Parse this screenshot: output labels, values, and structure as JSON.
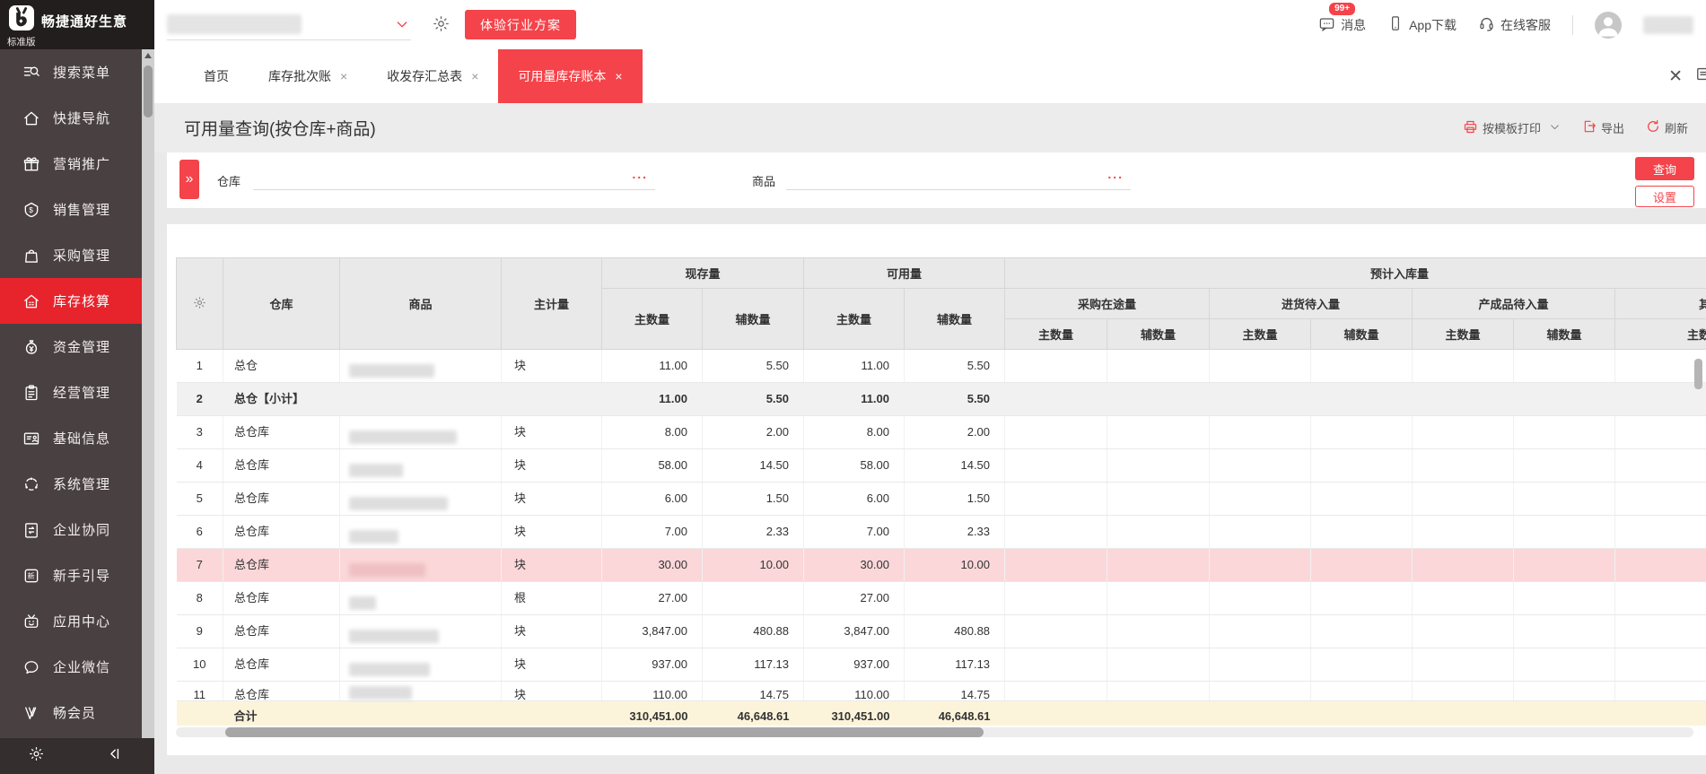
{
  "brand": {
    "name": "畅捷通好生意",
    "edition": "标准版"
  },
  "sidebar": {
    "items": [
      {
        "id": "search-menu",
        "label": "搜索菜单",
        "icon": "search-menu-icon",
        "active": false
      },
      {
        "id": "quick-nav",
        "label": "快捷导航",
        "icon": "home-icon",
        "active": false
      },
      {
        "id": "marketing",
        "label": "营销推广",
        "icon": "gift-icon",
        "active": false
      },
      {
        "id": "sales",
        "label": "销售管理",
        "icon": "sales-shield-icon",
        "active": false
      },
      {
        "id": "purchase",
        "label": "采购管理",
        "icon": "shopping-bag-icon",
        "active": false
      },
      {
        "id": "inventory",
        "label": "库存核算",
        "icon": "warehouse-icon",
        "active": true
      },
      {
        "id": "funds",
        "label": "资金管理",
        "icon": "money-bag-icon",
        "active": false
      },
      {
        "id": "operations",
        "label": "经营管理",
        "icon": "clipboard-icon",
        "active": false
      },
      {
        "id": "base-info",
        "label": "基础信息",
        "icon": "id-card-icon",
        "active": false
      },
      {
        "id": "system",
        "label": "系统管理",
        "icon": "system-icon",
        "active": false
      },
      {
        "id": "collaboration",
        "label": "企业协同",
        "icon": "collaboration-icon",
        "active": false
      },
      {
        "id": "newbie-guide",
        "label": "新手引导",
        "icon": "newbie-icon",
        "active": false
      },
      {
        "id": "app-center",
        "label": "应用中心",
        "icon": "app-center-icon",
        "active": false
      },
      {
        "id": "wecom",
        "label": "企业微信",
        "icon": "wecom-icon",
        "active": false
      },
      {
        "id": "member",
        "label": "畅会员",
        "icon": "member-icon",
        "active": false
      }
    ]
  },
  "topbar": {
    "trial_button": "体验行业方案",
    "messages_label": "消息",
    "messages_badge": "99+",
    "app_download_label": "App下载",
    "online_service_label": "在线客服"
  },
  "tabs": [
    {
      "label": "首页",
      "closable": false,
      "active": false
    },
    {
      "label": "库存批次账",
      "closable": true,
      "active": false
    },
    {
      "label": "收发存汇总表",
      "closable": true,
      "active": false
    },
    {
      "label": "可用量库存账本",
      "closable": true,
      "active": true
    }
  ],
  "page": {
    "title": "可用量查询(按仓库+商品)",
    "print_label": "按模板打印",
    "export_label": "导出",
    "refresh_label": "刷新"
  },
  "filters": {
    "warehouse_label": "仓库",
    "product_label": "商品",
    "ellipsis": "...",
    "query_button": "查询",
    "settings_button": "设置"
  },
  "table": {
    "columns": {
      "warehouse": "仓库",
      "product": "商品",
      "unit": "主计量"
    },
    "groups": {
      "stock": "现存量",
      "available": "可用量",
      "expected": "预计入库量"
    },
    "subgroups": {
      "purchase_transit": "采购在途量",
      "incoming": "进货待入量",
      "finished_goods": "产成品待入量",
      "other_truncated": "其"
    },
    "qty": {
      "main": "主数量",
      "aux": "辅数量"
    },
    "rows": [
      {
        "idx": "1",
        "warehouse": "总仓",
        "unit": "块",
        "values": [
          "11.00",
          "5.50",
          "11.00",
          "5.50"
        ],
        "type": "normal",
        "blur_width": 95
      },
      {
        "idx": "2",
        "warehouse": "总仓【小计】",
        "unit": "",
        "values": [
          "11.00",
          "5.50",
          "11.00",
          "5.50"
        ],
        "type": "subtotal",
        "blur_width": 0
      },
      {
        "idx": "3",
        "warehouse": "总仓库",
        "unit": "块",
        "values": [
          "8.00",
          "2.00",
          "8.00",
          "2.00"
        ],
        "type": "normal",
        "blur_width": 120
      },
      {
        "idx": "4",
        "warehouse": "总仓库",
        "unit": "块",
        "values": [
          "58.00",
          "14.50",
          "58.00",
          "14.50"
        ],
        "type": "normal",
        "blur_width": 60
      },
      {
        "idx": "5",
        "warehouse": "总仓库",
        "unit": "块",
        "values": [
          "6.00",
          "1.50",
          "6.00",
          "1.50"
        ],
        "type": "normal",
        "blur_width": 110
      },
      {
        "idx": "6",
        "warehouse": "总仓库",
        "unit": "块",
        "values": [
          "7.00",
          "2.33",
          "7.00",
          "2.33"
        ],
        "type": "normal",
        "blur_width": 55
      },
      {
        "idx": "7",
        "warehouse": "总仓库",
        "unit": "块",
        "values": [
          "30.00",
          "10.00",
          "30.00",
          "10.00"
        ],
        "type": "selected",
        "blur_width": 85
      },
      {
        "idx": "8",
        "warehouse": "总仓库",
        "unit": "根",
        "values": [
          "27.00",
          "",
          "27.00",
          ""
        ],
        "type": "normal",
        "blur_width": 30
      },
      {
        "idx": "9",
        "warehouse": "总仓库",
        "unit": "块",
        "values": [
          "3,847.00",
          "480.88",
          "3,847.00",
          "480.88"
        ],
        "type": "normal",
        "blur_width": 100
      },
      {
        "idx": "10",
        "warehouse": "总仓库",
        "unit": "块",
        "values": [
          "937.00",
          "117.13",
          "937.00",
          "117.13"
        ],
        "type": "normal",
        "blur_width": 90
      },
      {
        "idx": "11",
        "warehouse": "总仓库",
        "unit": "块",
        "values": [
          "110.00",
          "14.75",
          "110.00",
          "14.75"
        ],
        "type": "clipped",
        "blur_width": 70
      }
    ],
    "total": {
      "label": "合计",
      "values": [
        "310,451.00",
        "46,648.61",
        "310,451.00",
        "46,648.61"
      ]
    }
  },
  "colors": {
    "accent_red": "#f4434a",
    "sidebar_active_red": "#e7232b",
    "selected_row_pink": "#fbd7d9",
    "total_row_yellow": "#fcf4da"
  }
}
